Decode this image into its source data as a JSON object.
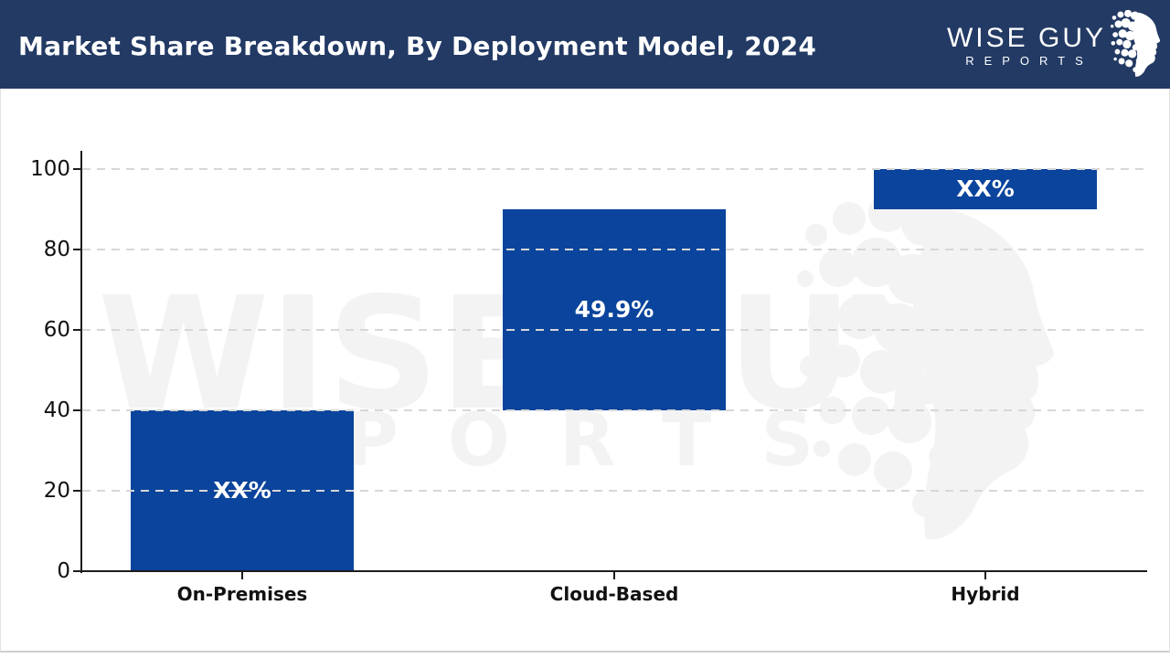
{
  "header": {
    "title": "Market Share Breakdown, By Deployment Model, 2024",
    "logo": {
      "brand": "WISE GUY",
      "sub": "REPORTS"
    }
  },
  "watermark": {
    "brand": "WISE GUY",
    "sub": "REPORTS"
  },
  "chart_data": {
    "type": "bar",
    "subtype": "floating-segment waterfall of market share",
    "title": "Market Share Breakdown, By Deployment Model, 2024",
    "categories": [
      "On-Premises",
      "Cloud-Based",
      "Hybrid"
    ],
    "bars": [
      {
        "category": "On-Premises",
        "start": 0,
        "end": 40,
        "label": "XX%"
      },
      {
        "category": "Cloud-Based",
        "start": 40,
        "end": 89.9,
        "label": "49.9%"
      },
      {
        "category": "Hybrid",
        "start": 89.9,
        "end": 100,
        "label": "XX%"
      }
    ],
    "yticks": [
      0,
      20,
      40,
      60,
      80,
      100
    ],
    "ylim": [
      0,
      104
    ],
    "xlabel": "",
    "ylabel": "",
    "grid": "horizontal dashed",
    "legend": "none",
    "bar_color": "#0a449c",
    "value_label_color": "#ffffff"
  },
  "colors": {
    "header_bg": "#223a64",
    "bar": "#0a449c",
    "gridline": "#d7d7d7",
    "axis": "#1c1c1c",
    "watermark": "#f3f3f3",
    "bottom_rule": "#cfcfcf"
  }
}
